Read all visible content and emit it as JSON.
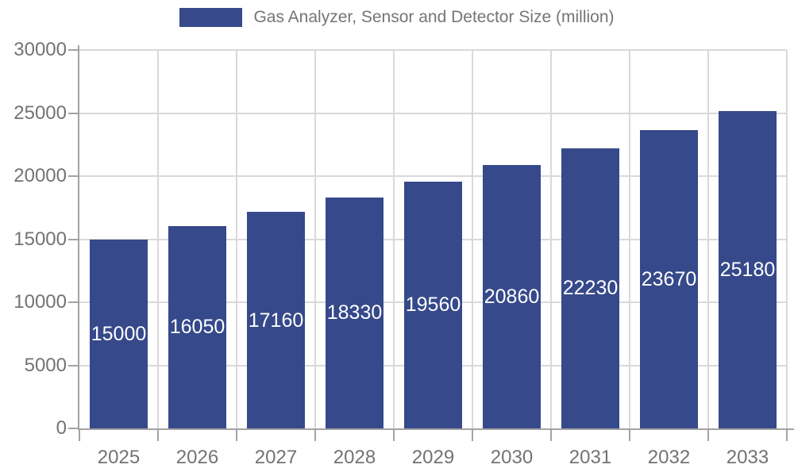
{
  "legend": {
    "label": "Gas Analyzer, Sensor and Detector Size (million)"
  },
  "chart_data": {
    "type": "bar",
    "title": "Gas Analyzer, Sensor and Detector Size (million)",
    "categories": [
      "2025",
      "2026",
      "2027",
      "2028",
      "2029",
      "2030",
      "2031",
      "2032",
      "2033"
    ],
    "values": [
      15000,
      16050,
      17160,
      18330,
      19560,
      20860,
      22230,
      23670,
      25180
    ],
    "series": [
      {
        "name": "Gas Analyzer, Sensor and Detector Size (million)",
        "values": [
          15000,
          16050,
          17160,
          18330,
          19560,
          20860,
          22230,
          23670,
          25180
        ]
      }
    ],
    "xlabel": "",
    "ylabel": "",
    "ylim": [
      0,
      30000
    ],
    "yticks": [
      0,
      5000,
      10000,
      15000,
      20000,
      25000,
      30000
    ],
    "grid": true,
    "legend_position": "top-center",
    "bar_labels_inside": true,
    "colors": {
      "bar": "#36498a",
      "bar_label": "#ffffff",
      "axis_text": "#737373",
      "title_text": "#757575",
      "grid": "#d9d9d9",
      "axis_line": "#a3a3a3",
      "background": "#ffffff"
    }
  }
}
